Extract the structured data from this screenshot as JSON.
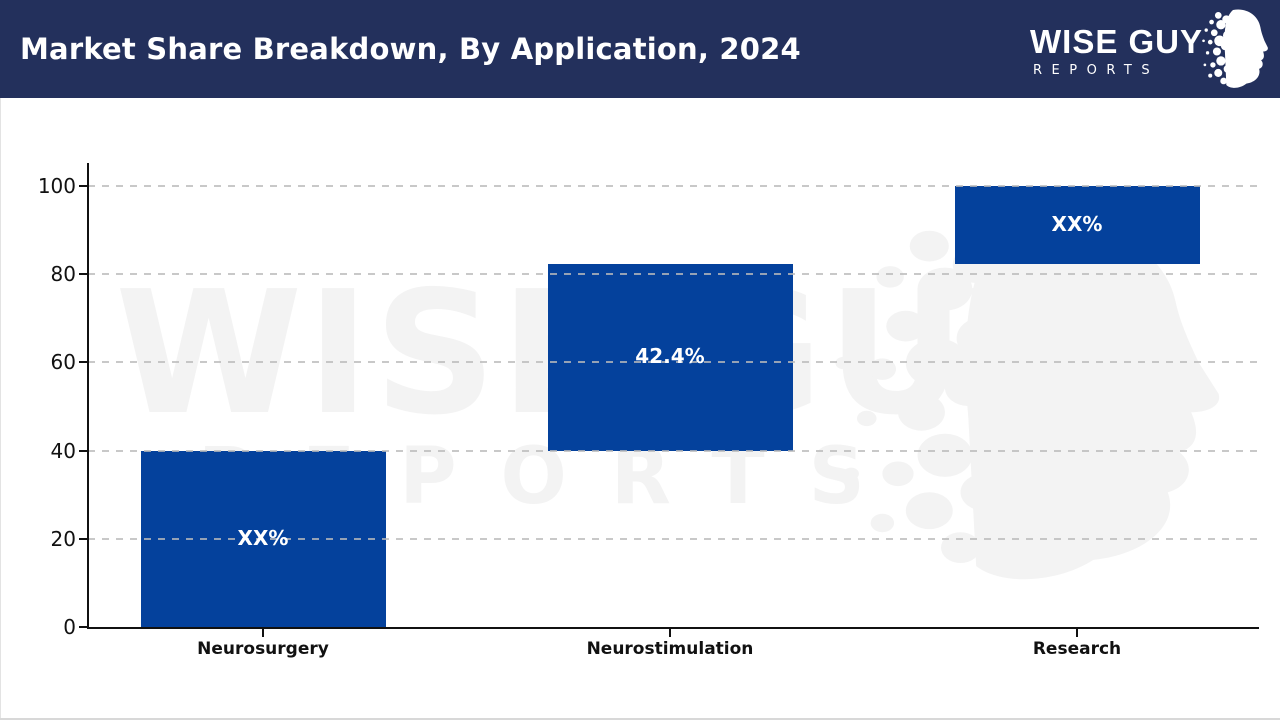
{
  "header": {
    "title": "Market Share Breakdown, By Application, 2024",
    "logo": {
      "line1": "WISE GUY",
      "line2": "REPORTS"
    }
  },
  "watermark": {
    "line1": "WISE GUY",
    "line2": "REPORTS"
  },
  "chart_data": {
    "type": "bar",
    "subtype": "floating-waterfall",
    "title": "Market Share Breakdown, By Application, 2024",
    "categories": [
      "Neurosurgery",
      "Neurostimulation",
      "Research"
    ],
    "bars": [
      {
        "category": "Neurosurgery",
        "start": 0,
        "end": 40,
        "label": "XX%"
      },
      {
        "category": "Neurostimulation",
        "start": 40,
        "end": 82.4,
        "label": "42.4%"
      },
      {
        "category": "Research",
        "start": 82.4,
        "end": 100,
        "label": "XX%"
      }
    ],
    "xlabel": "",
    "ylabel": "",
    "ylim": [
      0,
      100
    ],
    "yticks": [
      0,
      20,
      40,
      60,
      80,
      100
    ],
    "grid": "horizontal-dashed",
    "legend": "none",
    "bar_color": "#04419C",
    "value_label_color": "#ffffff",
    "header_color": "#23305C",
    "watermark_color": "#f3f3f3"
  }
}
